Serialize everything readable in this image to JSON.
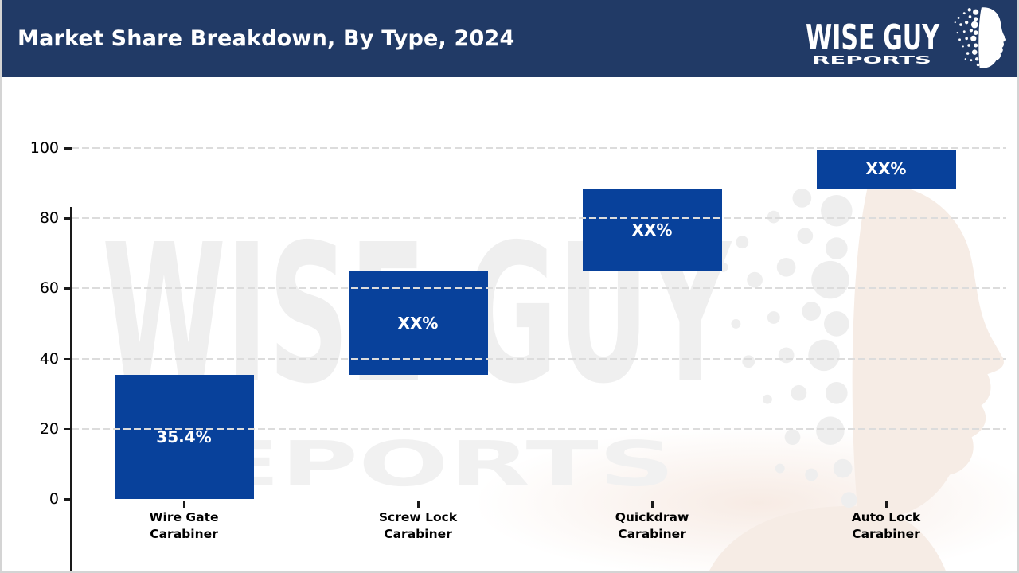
{
  "header": {
    "title": "Market Share Breakdown, By Type, 2024",
    "logo": {
      "brand_top": "WISE GUY",
      "brand_bottom": "REPORTS",
      "icon": "dotted-face-profile-icon"
    }
  },
  "watermark": {
    "brand_top": "WISE GUY",
    "brand_bottom": "REPORTS",
    "icon": "dotted-face-profile-icon"
  },
  "chart_data": {
    "type": "bar",
    "subtype": "waterfall",
    "title": "Market Share Breakdown, By Type, 2024",
    "categories": [
      {
        "line1": "Wire Gate",
        "line2": "Carabiner"
      },
      {
        "line1": "Screw Lock",
        "line2": "Carabiner"
      },
      {
        "line1": "Quickdraw",
        "line2": "Carabiner"
      },
      {
        "line1": "Auto Lock",
        "line2": "Carabiner"
      }
    ],
    "segments": [
      {
        "category": "Wire Gate Carabiner",
        "start": 0,
        "end": 35.4,
        "label": "35.4%",
        "value": 35.4
      },
      {
        "category": "Screw Lock Carabiner",
        "start": 35.4,
        "end": 64.9,
        "label": "XX%",
        "value_estimate": 29.5
      },
      {
        "category": "Quickdraw Carabiner",
        "start": 64.9,
        "end": 88.4,
        "label": "XX%",
        "value_estimate": 23.5
      },
      {
        "category": "Auto Lock Carabiner",
        "start": 88.4,
        "end": 99.6,
        "label": "XX%",
        "value_estimate": 11.2
      }
    ],
    "xlabel": "",
    "ylabel": "",
    "ylim": [
      0,
      105
    ],
    "yticks": [
      0,
      20,
      40,
      60,
      80,
      100
    ],
    "grid": "horizontal-dashed",
    "legend": "none",
    "bar_color": "#08419b",
    "bar_label_color": "#ffffff"
  },
  "colors": {
    "header_bg": "#213a66",
    "bar_blue": "#08419b",
    "gridline": "#dcdcdc",
    "axis": "#1a1a1a",
    "watermark_gray": "#eeeeee",
    "watermark_peach": "#f6ece5",
    "page_border": "#d4d4d4"
  }
}
